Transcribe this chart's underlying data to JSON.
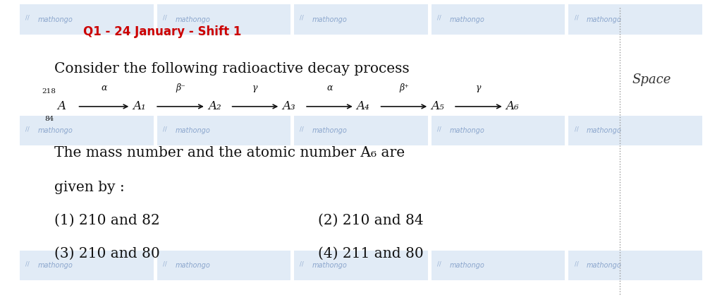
{
  "title": "Q1 - 24 January - Shift 1",
  "title_color": "#cc0000",
  "bg_color": "#ffffff",
  "watermark_text": "mathongo",
  "watermark_bg": "#c5d8ee",
  "watermark_fg": "#6688bb",
  "question_text": "Consider the following radioactive decay process",
  "space_label": "Space",
  "body_text_line1": "The mass number and the atomic number A₆ are",
  "body_text_line2": "given by :",
  "options": [
    "(1) 210 and 82",
    "(2) 210 and 84",
    "(3) 210 and 80",
    "(4) 211 and 80"
  ],
  "start_mass": "218",
  "start_atomic": "84",
  "elements": [
    "A",
    "A₁",
    "A₂",
    "A₃",
    "A₄",
    "A₅",
    "A₆"
  ],
  "decay_labels": [
    "α",
    "β⁻",
    "γ",
    "α",
    "β⁺",
    "γ"
  ],
  "dashed_line_x": 0.858,
  "fig_width": 10.24,
  "fig_height": 4.25,
  "dpi": 100
}
